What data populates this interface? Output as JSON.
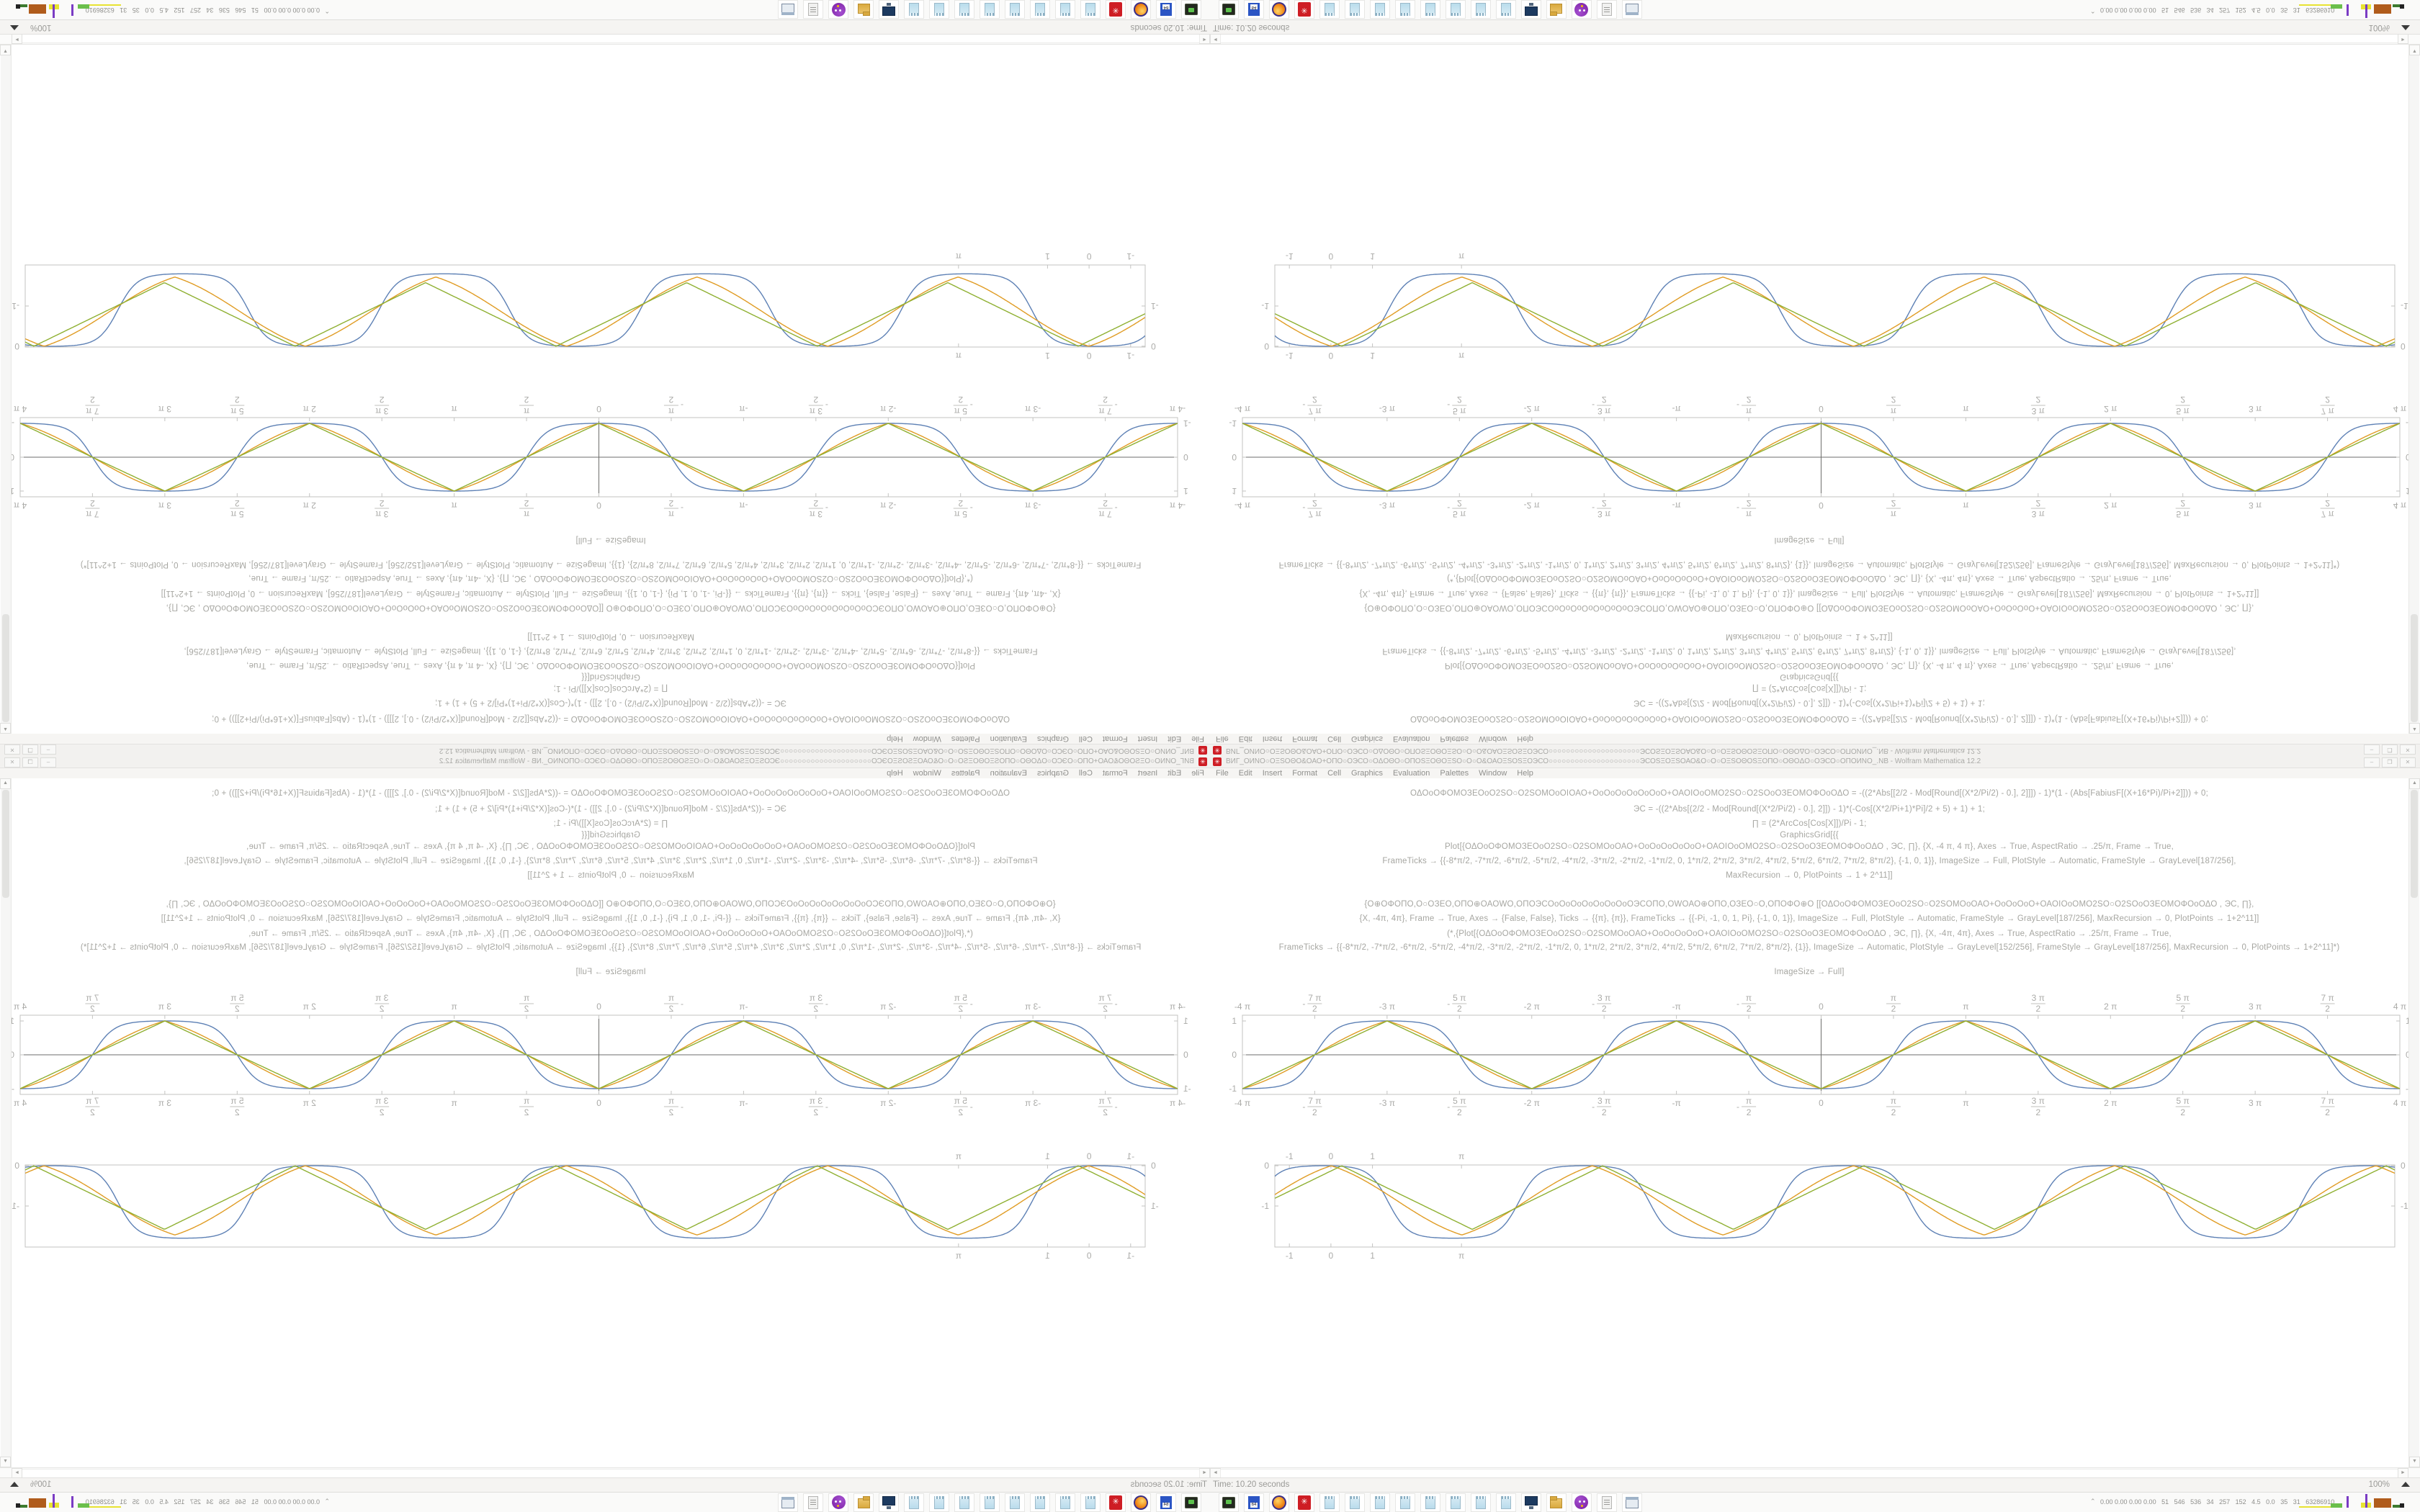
{
  "window": {
    "title": "ВИГ_ОИNО○ОΞЅОΘО&ОАО+ОПО○ОЭСО○ОΔОΘО○ОПОЅΞОΘОΞЅО○О○О&ОАОΞЅОЅΞОЭСО○○○○○○○○○○○○○○○○○○○○○ЭСОЅΞОΞЅОАО&О○О○ОΞЅОΘОЅΞОПО○ОΘОΔО○ОЭСО○ОПОИNО_.NB - Wolfram Mathematica 12.2",
    "buttons": {
      "minimize": "–",
      "restore": "❐",
      "close": "✕"
    }
  },
  "menu": {
    "items": [
      "File",
      "Edit",
      "Insert",
      "Format",
      "Cell",
      "Graphics",
      "Evaluation",
      "Palettes",
      "Window",
      "Help"
    ]
  },
  "notebook": {
    "cell1_lines": [
      "ΟΔΟοΟΦΟΜΟЗΕΟοΟ2SΟ○Ο2SΟΜΟοΟΙΟΑΟ+ΟοΟοΟοΟοΟοΟοΟ+ΟΑΟΙΟοΟΜΟ2SΟ○Ο2SΟοΟЗΕΟΜΟΦΟοΟΔΟ   = -((2*Abs[[2/2 - Mod[Round[(X*2/Pi/2) - 0.], 2]]]) - 1)*(1 - (Abs[FabiusF[(X+16*Pi)/Pi+2]])) + 0;",
      "ЭC = -((2*Abs[(2/2 - Mod[Round[(X*2/Pi/2) - 0.], 2]]) - 1)*(-Cos[(X*2/Pi+1)*Pi]/2 + 5) + 1) + 1;",
      "∏ = (2*ArcCos[Cos[X]])/Pi - 1;",
      "GraphicsGrid[{{",
      "Plot[{ΟΔΟοΟΦΟΜΟЗΕΟοΟ2SΟ○Ο2SΟΜΟοΟΑΟ+ΟοΟοΟοΟοΟοΟ+ΟΑΟΙΟοΟΜΟ2SΟ○Ο2SΟοΟЗΕΟΜΟΦΟοΟΔΟ , ЭC, ∏}, {X, -4 π, 4 π}, Axes → True, AspectRatio → .25/π, Frame → True,",
      "FrameTicks → {{-8*π/2, -7*π/2, -6*π/2, -5*π/2, -4*π/2, -3*π/2, -2*π/2, -1*π/2, 0, 1*π/2, 2*π/2, 3*π/2, 4*π/2, 5*π/2, 6*π/2, 7*π/2, 8*π/2}, {-1, 0, 1}}, ImageSize → Full, PlotStyle → Automatic, FrameStyle → GrayLevel[187/256],",
      "MaxRecursion → 0, PlotPoints → 1 + 2^11]]"
    ],
    "cell2_lines": [
      "{Ο⊕ΟΦΟΠΟ,Ο○ΟЗΕΟ,ΟΠΟ⊕ΟΑΟWΟ,ΟΠΟЭCΟοΟοΟοΟοΟοΟοΟοΟЭCΟΠΟ,ΟWΟΑΟ⊕ΟΠΟ,ΟЗΕΟ○Ο,ΟΠΟΦΟ⊕Ο   [[ΟΔΟοΟΦΟΜΟЗΕΟοΟ2SΟ○Ο2SΟΜΟοΟΑΟ+ΟοΟοΟοΟ+ΟΑΟΙΟοΟΜΟ2SΟ○Ο2SΟοΟЗΕΟΜΟΦΟοΟΔΟ , ЭC, ∏},",
      "{X, -4π, 4π}, Frame → True, Axes → {False, False}, Ticks → {{π}, {π}}, FrameTicks → {{-Pi, -1, 0, 1, Pi}, {-1, 0, 1}}, ImageSize → Full, PlotStyle → Automatic, FrameStyle → GrayLevel[187/256], MaxRecursion → 0, PlotPoints → 1+2^11]]",
      "(*,{Plot[{ΟΔΟοΟΦΟΜΟЗΕΟοΟ2SΟ○Ο2SΟΜΟοΟΑΟ+ΟοΟοΟοΟοΟ+ΟΑΟΙΟοΟΜΟ2SΟ○Ο2SΟοΟЗΕΟΜΟΦΟοΟΔΟ , ЭC, ∏}, {X, -4π, 4π}, Axes → True, AspectRatio → .25/π, Frame → True,",
      "FrameTicks → {{-8*π/2, -7*π/2, -6*π/2, -5*π/2, -4*π/2, -3*π/2, -2*π/2, -1*π/2, 0, 1*π/2, 2*π/2, 3*π/2, 4*π/2, 5*π/2, 6*π/2, 7*π/2, 8*π/2}, {1}}, ImageSize → Automatic, PlotStyle → GrayLevel[152/256], FrameStyle → GrayLevel[187/256], MaxRecursion → 0, PlotPoints → 1+2^11]*)"
    ],
    "closing_line": "ImageSize → Full]"
  },
  "statusbar": {
    "time": "Time: 10.20 seconds",
    "zoom": "100%"
  },
  "scrollbars": {
    "up": "▲",
    "down": "▼",
    "left": "◄",
    "right": "►"
  },
  "taskbar": {
    "icons": [
      {
        "type": "drive",
        "name": "disk-drive-icon"
      },
      {
        "type": "floppy",
        "name": "floppy64-icon"
      },
      {
        "type": "firefox",
        "name": "firefox-icon"
      },
      {
        "type": "mma",
        "name": "mathematica-icon"
      },
      {
        "type": "note",
        "name": "notepad-icon"
      },
      {
        "type": "note",
        "name": "notepad-icon"
      },
      {
        "type": "note",
        "name": "notepad-icon"
      },
      {
        "type": "note",
        "name": "notepad-icon"
      },
      {
        "type": "note",
        "name": "notepad-icon"
      },
      {
        "type": "note",
        "name": "notepad-icon"
      },
      {
        "type": "note",
        "name": "notepad-icon"
      },
      {
        "type": "note",
        "name": "notepad-icon"
      },
      {
        "type": "monitor",
        "name": "monitor-camera-icon"
      },
      {
        "type": "folder",
        "name": "folder-icon"
      },
      {
        "type": "face",
        "name": "purple-avatar-icon"
      },
      {
        "type": "print",
        "name": "printer-document-icon"
      },
      {
        "type": "winframe",
        "name": "window-frame-icon"
      }
    ],
    "tray": {
      "chevron": "⌃",
      "numbers": "0.00 0.00 0.00 0.00   51   546   536   34   257   152   4.5   0.0   35   31   63286910"
    }
  },
  "chart_data": [
    {
      "type": "line",
      "title": "",
      "xlabel": "",
      "ylabel": "",
      "x_range": [
        -12.566,
        12.566
      ],
      "y_range": [
        -1.17,
        1.17
      ],
      "frame": true,
      "axes": true,
      "grid": false,
      "legend": "none",
      "x_tick_values": [
        -12.566,
        -10.996,
        -9.4248,
        -7.854,
        -6.2832,
        -4.7124,
        -3.1416,
        -1.5708,
        0,
        1.5708,
        3.1416,
        4.7124,
        6.2832,
        7.854,
        9.4248,
        10.996,
        12.566
      ],
      "x_ticks": [
        {
          "v": -12.566,
          "l": "-4 π"
        },
        {
          "v": -10.996,
          "n": "7 π",
          "d": "2",
          "neg": true
        },
        {
          "v": -9.4248,
          "l": "-3 π"
        },
        {
          "v": -7.854,
          "n": "5 π",
          "d": "2",
          "neg": true
        },
        {
          "v": -6.2832,
          "l": "-2 π"
        },
        {
          "v": -4.7124,
          "n": "3 π",
          "d": "2",
          "neg": true
        },
        {
          "v": -3.1416,
          "l": "-π"
        },
        {
          "v": -1.5708,
          "n": "π",
          "d": "2",
          "neg": true
        },
        {
          "v": 0,
          "l": "0"
        },
        {
          "v": 1.5708,
          "n": "π",
          "d": "2",
          "neg": false
        },
        {
          "v": 3.1416,
          "l": "π"
        },
        {
          "v": 4.7124,
          "n": "3 π",
          "d": "2",
          "neg": false
        },
        {
          "v": 6.2832,
          "l": "2 π"
        },
        {
          "v": 7.854,
          "n": "5 π",
          "d": "2",
          "neg": false
        },
        {
          "v": 9.4248,
          "l": "3 π"
        },
        {
          "v": 10.996,
          "n": "7 π",
          "d": "2",
          "neg": false
        },
        {
          "v": 12.566,
          "l": "4 π"
        }
      ],
      "y_ticks": [
        {
          "v": 1,
          "l": "1"
        },
        {
          "v": 0,
          "l": "0"
        },
        {
          "v": -1,
          "l": "-1"
        }
      ],
      "series": [
        {
          "name": "ΟΔΟΦΟΜΟ (garbled symbol)",
          "shape": "flat",
          "phase": 0,
          "scale": 1,
          "shift": 0,
          "color": "#5e81b5"
        },
        {
          "name": "ЭC",
          "shape": "smooth",
          "phase": 0,
          "scale": 1,
          "shift": 0,
          "color": "#e09c24"
        },
        {
          "name": "∏",
          "shape": "triangle",
          "phase": 0,
          "scale": 1,
          "shift": 0,
          "color": "#8fb032"
        }
      ],
      "notes": "three phase-aligned triangle-family waves, period 2π, min -1 at x=0, max 1 at x=±π"
    },
    {
      "type": "line",
      "title": "",
      "xlabel": "",
      "ylabel": "",
      "x_range": [
        -1.35,
        25.6
      ],
      "y_range": [
        -2.02,
        0.02
      ],
      "frame": true,
      "axes": false,
      "grid": false,
      "legend": "none",
      "x_ticks": [
        {
          "v": -1,
          "l": "-1"
        },
        {
          "v": 0,
          "l": "0"
        },
        {
          "v": 1,
          "l": "1"
        },
        {
          "v": 3.1416,
          "l": "π"
        }
      ],
      "y_ticks": [
        {
          "v": 0,
          "l": "0"
        },
        {
          "v": -1,
          "l": "-1"
        }
      ],
      "series": [
        {
          "name": "ΟΔΟΦΟΜΟ (garbled symbol)",
          "shape": "flat",
          "phase": 2.95,
          "scale": 0.9,
          "shift": -0.9,
          "color": "#5e81b5"
        },
        {
          "name": "ЭC",
          "shape": "smooth",
          "phase": 3.15,
          "scale": 0.86,
          "shift": -0.86,
          "color": "#e09c24"
        },
        {
          "name": "∏",
          "shape": "triangle",
          "phase": 3.4,
          "scale": 0.79,
          "shift": -0.79,
          "color": "#8fb032"
        }
      ],
      "notes": "same wave family shifted down: tops at 0, minima between -1.6 and -1.8, period 2π"
    }
  ],
  "colors": {
    "series_blue": "#5e81b5",
    "series_orange": "#e09c24",
    "series_green": "#8fb032",
    "frame_gray": "#c3c3c1",
    "tick_label": "#ababa8",
    "code_text": "#a6a6a1",
    "chrome_bg": "#f2f1ef",
    "app_red": "#ce1d24"
  }
}
